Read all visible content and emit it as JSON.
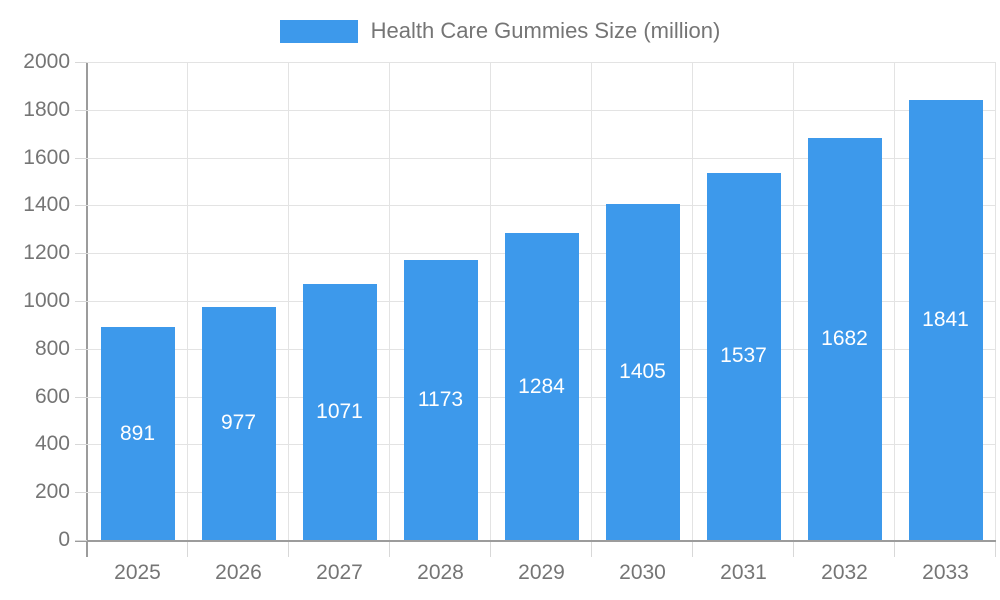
{
  "legend": {
    "label": "Health Care Gummies Size (million)"
  },
  "colors": {
    "bar": "#3D99EB",
    "value_label": "#FFFFFF",
    "axis_text": "#757575",
    "grid": "#E3E3E3",
    "axis_line": "#9C9C9C"
  },
  "chart_data": {
    "type": "bar",
    "title": "Health Care Gummies Size (million)",
    "categories": [
      "2025",
      "2026",
      "2027",
      "2028",
      "2029",
      "2030",
      "2031",
      "2032",
      "2033"
    ],
    "series": [
      {
        "name": "Health Care Gummies Size (million)",
        "values": [
          891,
          977,
          1071,
          1173,
          1284,
          1405,
          1537,
          1682,
          1841
        ]
      }
    ],
    "xlabel": "",
    "ylabel": "",
    "ylim": [
      0,
      2000
    ],
    "ytick_step": 200,
    "grid": true,
    "legend_position": "top",
    "value_labels": "inside-center"
  }
}
